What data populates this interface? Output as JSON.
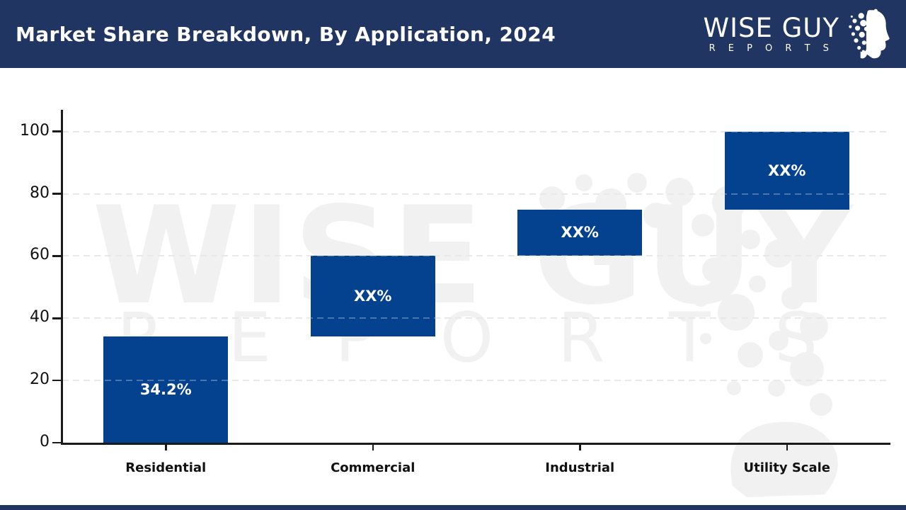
{
  "header": {
    "title": "Market Share Breakdown, By Application, 2024",
    "logo_line1": "WISE GUY",
    "logo_line2": "R E P O R T S"
  },
  "watermark": {
    "line1": "WISE GUY",
    "line2": "R E P O R T S"
  },
  "colors": {
    "header_bg": "#203561",
    "footer_bg": "#203561",
    "bar": "#04418f",
    "bar_label": "#ffffff",
    "axis": "#1a1a1a",
    "gridline": "#e0e0e0",
    "watermark": "#f1f1f1"
  },
  "chart_data": {
    "type": "bar",
    "variant": "floating-waterfall",
    "title": "Market Share Breakdown, By Application, 2024",
    "categories": [
      "Residential",
      "Commercial",
      "Industrial",
      "Utility Scale"
    ],
    "series": [
      {
        "name": "Market share (%)",
        "segments": [
          {
            "category": "Residential",
            "start": 0,
            "end": 34.2,
            "label": "34.2%"
          },
          {
            "category": "Commercial",
            "start": 34.2,
            "end": 60,
            "label": "XX%"
          },
          {
            "category": "Industrial",
            "start": 60,
            "end": 75,
            "label": "XX%"
          },
          {
            "category": "Utility Scale",
            "start": 75,
            "end": 100,
            "label": "XX%"
          }
        ]
      }
    ],
    "yticks": [
      0,
      20,
      40,
      60,
      80,
      100
    ],
    "ylim": [
      0,
      107
    ],
    "xlabel": "",
    "ylabel": "",
    "grid": "horizontal-dashed",
    "legend": "none"
  }
}
